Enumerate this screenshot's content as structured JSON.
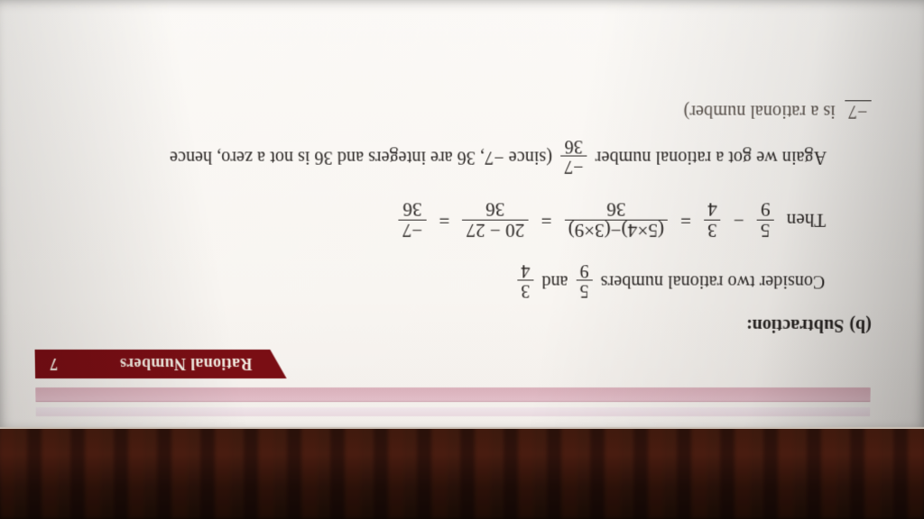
{
  "chapter_tab": {
    "title": "Rational Numbers",
    "page": "7"
  },
  "section": {
    "marker": "(b)",
    "title": "Subtraction:"
  },
  "intro": {
    "lead": "Consider two rational numbers",
    "frac_a": {
      "num": "5",
      "den": "9"
    },
    "mid": "and",
    "frac_b": {
      "num": "3",
      "den": "4"
    }
  },
  "equation": {
    "then": "Then",
    "lhs_a": {
      "num": "5",
      "den": "9"
    },
    "minus": "−",
    "lhs_b": {
      "num": "3",
      "den": "4"
    },
    "eq": "=",
    "step1": {
      "num": "(5×4)−(3×9)",
      "den": "36"
    },
    "step2": {
      "num": "20 − 27",
      "den": "36"
    },
    "step3": {
      "num": "−7",
      "den": "36"
    }
  },
  "conclusion": {
    "lead": "Again we got a rational number",
    "frac": {
      "num": "−7",
      "den": "36"
    },
    "tail": "(since −7, 36 are integers and 36 is not a zero, hence"
  },
  "cutoff": {
    "frac": {
      "num": "−7",
      "den": " "
    },
    "tail": "is a rational number)"
  },
  "colors": {
    "tab_bg": "#7a0e14",
    "tab_text": "#f3ece2",
    "page_bg": "#fbf9f6",
    "stripe": "#d9b0ba",
    "text": "#2a2624"
  }
}
